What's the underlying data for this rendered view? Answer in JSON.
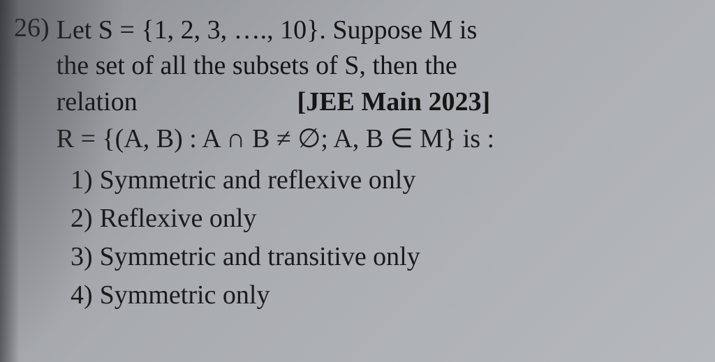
{
  "question": {
    "number": "26)",
    "line1": "Let S = {1, 2, 3, …., 10}. Suppose M is",
    "line2": "the set of all the subsets of S, then the",
    "relation_word": "relation",
    "tag": "[JEE Main 2023]",
    "relation_def": "R = {(A, B) : A ∩ B ≠ ∅; A, B ∈ M} is :"
  },
  "options": [
    {
      "num": "1)",
      "text": "Symmetric and reflexive only"
    },
    {
      "num": "2)",
      "text": "Reflexive only"
    },
    {
      "num": "3)",
      "text": "Symmetric and transitive only"
    },
    {
      "num": "4)",
      "text": "Symmetric only"
    }
  ],
  "style": {
    "fontsize_pt": 38,
    "text_color": "#151515",
    "background_gradient": [
      "#8a8d92",
      "#a8abb0",
      "#b5b8bd"
    ],
    "tag_weight": 700,
    "line_height": 1.35
  }
}
